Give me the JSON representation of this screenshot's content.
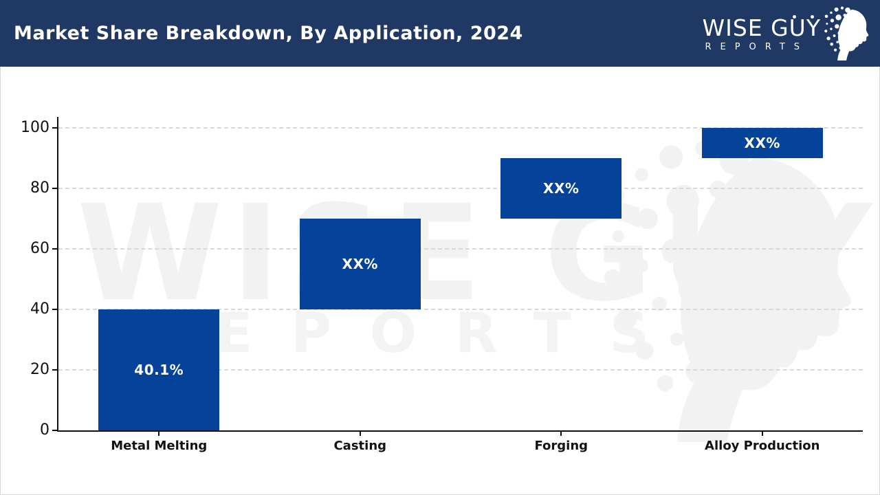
{
  "header": {
    "title": "Market Share Breakdown, By Application, 2024",
    "logo": {
      "line1": "WISE GUY",
      "line2": "REPORTS"
    }
  },
  "watermark": {
    "line1": "WISE GUY",
    "line2": "REPORTS"
  },
  "colors": {
    "header_bg": "#1f3864",
    "bar": "#05429a",
    "grid": "#d8d8d8",
    "axis": "#111111",
    "bar_label": "#ffffff",
    "watermark": "#f2f2f2"
  },
  "chart_data": {
    "type": "bar",
    "variant": "floating-range-waterfall",
    "title": "Market Share Breakdown, By Application, 2024",
    "categories": [
      "Metal Melting",
      "Casting",
      "Forging",
      "Alloy Production"
    ],
    "series": [
      {
        "name": "Market Share (%)",
        "ranges": [
          [
            0,
            40
          ],
          [
            40,
            70
          ],
          [
            70,
            90
          ],
          [
            90,
            100
          ]
        ],
        "labels": [
          "40.1%",
          "XX%",
          "XX%",
          "XX%"
        ]
      }
    ],
    "xlabel": "",
    "ylabel": "",
    "yticks": [
      0,
      20,
      40,
      60,
      80,
      100
    ],
    "ylim": [
      0,
      105
    ],
    "grid": "horizontal-dashed",
    "legend": "none",
    "bar_color": "#05429a"
  }
}
